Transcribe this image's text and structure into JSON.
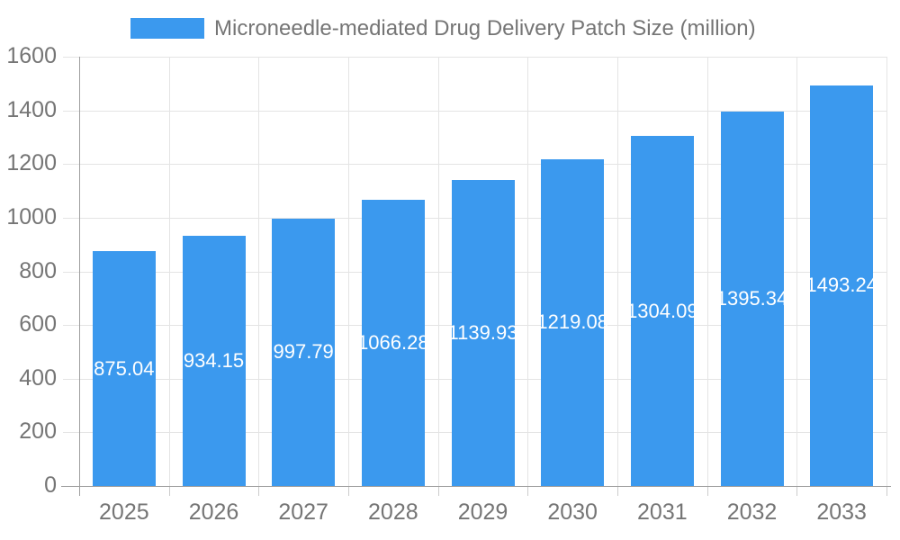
{
  "colors": {
    "bar": "#3b99ee",
    "axis": "#9e9e9e",
    "grid": "#e4e4e4",
    "x_tick": "#cccccc",
    "tick_label": "#757575",
    "value_label": "#ffffff",
    "legend_label": "#757575",
    "background": "#ffffff"
  },
  "legend": {
    "label": "Microneedle-mediated Drug Delivery Patch Size (million)",
    "position": "top"
  },
  "chart_data": {
    "type": "bar",
    "title": "Microneedle-mediated Drug Delivery Patch Size (million)",
    "xlabel": "",
    "ylabel": "",
    "categories": [
      "2025",
      "2026",
      "2027",
      "2028",
      "2029",
      "2030",
      "2031",
      "2032",
      "2033"
    ],
    "values": [
      875.04,
      934.15,
      997.79,
      1066.28,
      1139.93,
      1219.08,
      1304.09,
      1395.34,
      1493.24
    ],
    "value_labels": [
      "875.04",
      "934.15",
      "997.79",
      "1066.28",
      "1139.93",
      "1219.08",
      "1304.09",
      "1395.34",
      "1493.24"
    ],
    "y_ticks": [
      0,
      200,
      400,
      600,
      800,
      1000,
      1200,
      1400,
      1600
    ],
    "ylim": [
      0,
      1600
    ],
    "grid": true,
    "legend_position": "top",
    "value_label_position": "bar-center"
  }
}
